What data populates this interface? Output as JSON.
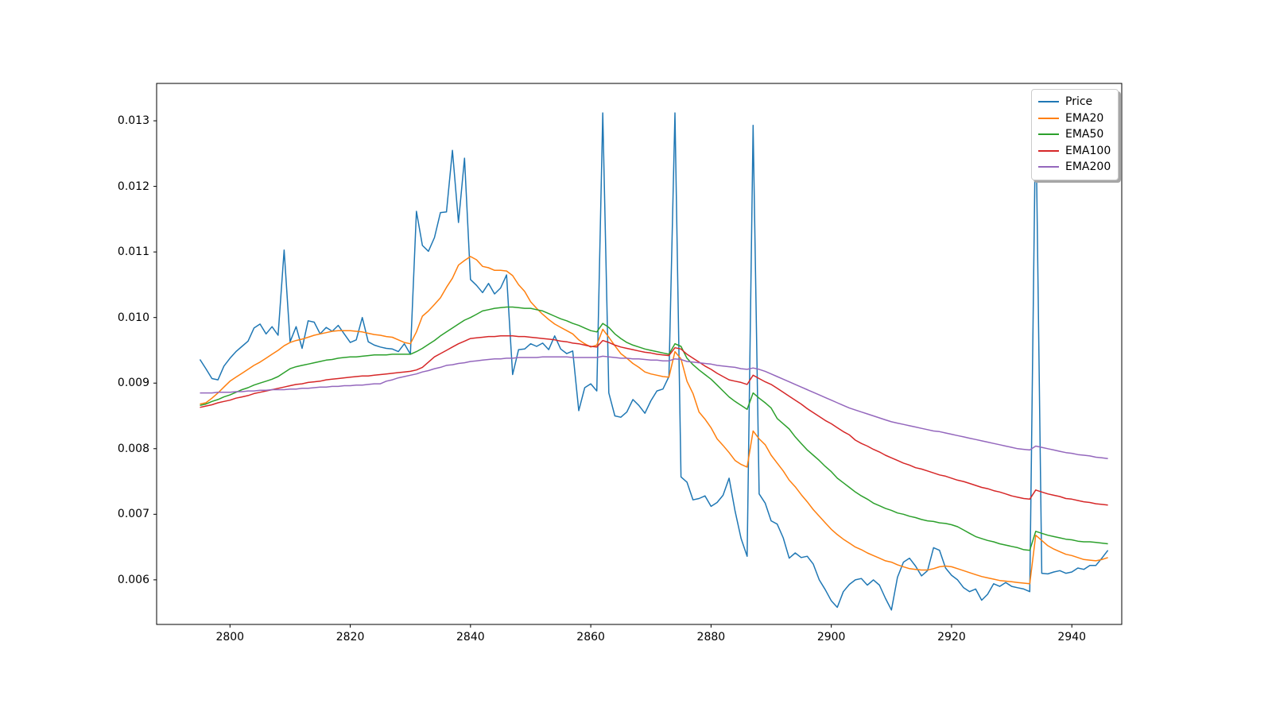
{
  "chart_data": {
    "type": "line",
    "title": "",
    "xlabel": "",
    "ylabel": "",
    "grid": false,
    "background": "#ffffff",
    "spine_color": "#000000",
    "xlim": [
      2787.8,
      2948.3
    ],
    "ylim": [
      0.00532,
      0.01357
    ],
    "x_ticks": [
      2800,
      2820,
      2840,
      2860,
      2880,
      2900,
      2920,
      2940
    ],
    "y_ticks": [
      0.006,
      0.007,
      0.008,
      0.009,
      0.01,
      0.011,
      0.012,
      0.013
    ],
    "x_start": 2795,
    "x_step": 1,
    "legend": {
      "position": "upper right",
      "entries": [
        "Price",
        "EMA20",
        "EMA50",
        "EMA100",
        "EMA200"
      ]
    },
    "series": [
      {
        "name": "Price",
        "color": "#1f77b4",
        "values": [
          0.00936,
          0.00922,
          0.00907,
          0.00905,
          0.00926,
          0.00938,
          0.00948,
          0.00956,
          0.00964,
          0.00984,
          0.0099,
          0.00975,
          0.00986,
          0.00973,
          0.01103,
          0.00963,
          0.00986,
          0.00953,
          0.00995,
          0.00993,
          0.00975,
          0.00985,
          0.00979,
          0.00988,
          0.00975,
          0.00962,
          0.00966,
          0.01,
          0.00963,
          0.00958,
          0.00955,
          0.00953,
          0.00952,
          0.00948,
          0.0096,
          0.00944,
          0.01162,
          0.0111,
          0.01101,
          0.01122,
          0.0116,
          0.01161,
          0.01255,
          0.01145,
          0.01243,
          0.01058,
          0.01049,
          0.01038,
          0.01052,
          0.01036,
          0.01045,
          0.01065,
          0.00913,
          0.00951,
          0.00952,
          0.0096,
          0.00956,
          0.00961,
          0.00951,
          0.00972,
          0.00952,
          0.00945,
          0.00949,
          0.00858,
          0.00893,
          0.00899,
          0.00888,
          0.01312,
          0.00885,
          0.0085,
          0.00848,
          0.00856,
          0.00875,
          0.00866,
          0.00854,
          0.00873,
          0.00888,
          0.00891,
          0.0091,
          0.01312,
          0.00757,
          0.00749,
          0.00722,
          0.00724,
          0.00728,
          0.00712,
          0.00718,
          0.00729,
          0.00755,
          0.00705,
          0.00663,
          0.00636,
          0.01293,
          0.00731,
          0.00717,
          0.0069,
          0.00685,
          0.00664,
          0.00633,
          0.00641,
          0.00634,
          0.00636,
          0.00624,
          0.006,
          0.00585,
          0.00568,
          0.00558,
          0.00582,
          0.00593,
          0.006,
          0.00602,
          0.00592,
          0.006,
          0.00592,
          0.00572,
          0.00554,
          0.00604,
          0.00627,
          0.00633,
          0.00621,
          0.00606,
          0.00614,
          0.00649,
          0.00645,
          0.00618,
          0.00607,
          0.006,
          0.00588,
          0.00582,
          0.00586,
          0.00569,
          0.00578,
          0.00594,
          0.0059,
          0.00596,
          0.0059,
          0.00588,
          0.00586,
          0.00582,
          0.01322,
          0.0061,
          0.00609,
          0.00612,
          0.00614,
          0.0061,
          0.00612,
          0.00618,
          0.00616,
          0.00622,
          0.00622,
          0.00633,
          0.00645
        ]
      },
      {
        "name": "EMA20",
        "color": "#ff7f0e",
        "values": [
          0.00868,
          0.0087,
          0.00877,
          0.00885,
          0.00894,
          0.00903,
          0.00909,
          0.00915,
          0.00921,
          0.00927,
          0.00932,
          0.00938,
          0.00944,
          0.0095,
          0.00957,
          0.00962,
          0.00965,
          0.00967,
          0.0097,
          0.00973,
          0.00975,
          0.00977,
          0.00979,
          0.0098,
          0.0098,
          0.0098,
          0.00979,
          0.00978,
          0.00976,
          0.00974,
          0.00973,
          0.00971,
          0.0097,
          0.00966,
          0.00962,
          0.0096,
          0.00978,
          0.01002,
          0.0101,
          0.0102,
          0.0103,
          0.01046,
          0.0106,
          0.0108,
          0.01087,
          0.01093,
          0.01088,
          0.01078,
          0.01076,
          0.01072,
          0.01072,
          0.01071,
          0.01064,
          0.0105,
          0.0104,
          0.01024,
          0.01014,
          0.01005,
          0.00997,
          0.0099,
          0.00985,
          0.0098,
          0.00975,
          0.00966,
          0.0096,
          0.00955,
          0.00958,
          0.00982,
          0.0097,
          0.00957,
          0.00945,
          0.00938,
          0.0093,
          0.00924,
          0.00917,
          0.00914,
          0.00912,
          0.0091,
          0.00909,
          0.00948,
          0.00937,
          0.00903,
          0.00884,
          0.00856,
          0.00845,
          0.00832,
          0.00815,
          0.00805,
          0.00794,
          0.00782,
          0.00776,
          0.00772,
          0.00827,
          0.00815,
          0.00806,
          0.0079,
          0.00778,
          0.00766,
          0.00752,
          0.00742,
          0.0073,
          0.00719,
          0.00707,
          0.00697,
          0.00687,
          0.00677,
          0.00669,
          0.00662,
          0.00656,
          0.0065,
          0.00646,
          0.00641,
          0.00637,
          0.00633,
          0.00629,
          0.00627,
          0.00623,
          0.0062,
          0.00617,
          0.00616,
          0.00615,
          0.00615,
          0.00617,
          0.0062,
          0.00621,
          0.0062,
          0.00617,
          0.00614,
          0.00611,
          0.00608,
          0.00605,
          0.00603,
          0.00601,
          0.00599,
          0.00598,
          0.00597,
          0.00596,
          0.00595,
          0.00594,
          0.00668,
          0.0066,
          0.00652,
          0.00647,
          0.00643,
          0.00639,
          0.00637,
          0.00634,
          0.00631,
          0.0063,
          0.00629,
          0.00631,
          0.00634
        ]
      },
      {
        "name": "EMA50",
        "color": "#2ca02c",
        "values": [
          0.00866,
          0.00868,
          0.00872,
          0.00875,
          0.00879,
          0.00882,
          0.00886,
          0.0089,
          0.00893,
          0.00897,
          0.009,
          0.00903,
          0.00906,
          0.0091,
          0.00916,
          0.00922,
          0.00925,
          0.00927,
          0.00929,
          0.00931,
          0.00933,
          0.00935,
          0.00936,
          0.00938,
          0.00939,
          0.0094,
          0.0094,
          0.00941,
          0.00942,
          0.00943,
          0.00943,
          0.00943,
          0.00944,
          0.00944,
          0.00944,
          0.00944,
          0.00948,
          0.00953,
          0.00959,
          0.00965,
          0.00972,
          0.00978,
          0.00984,
          0.0099,
          0.00996,
          0.01,
          0.01005,
          0.0101,
          0.01012,
          0.01014,
          0.01015,
          0.01016,
          0.01016,
          0.01015,
          0.01014,
          0.01014,
          0.01012,
          0.0101,
          0.01006,
          0.01002,
          0.00998,
          0.00995,
          0.00991,
          0.00988,
          0.00984,
          0.0098,
          0.00978,
          0.00991,
          0.00985,
          0.00975,
          0.00968,
          0.00962,
          0.00958,
          0.00955,
          0.00952,
          0.0095,
          0.00948,
          0.00946,
          0.00944,
          0.0096,
          0.00956,
          0.00938,
          0.00928,
          0.0092,
          0.00913,
          0.00906,
          0.00897,
          0.00888,
          0.00879,
          0.00872,
          0.00866,
          0.0086,
          0.00885,
          0.00877,
          0.0087,
          0.00862,
          0.00846,
          0.00838,
          0.0083,
          0.00818,
          0.00808,
          0.00798,
          0.0079,
          0.00782,
          0.00773,
          0.00765,
          0.00755,
          0.00748,
          0.00741,
          0.00734,
          0.00728,
          0.00723,
          0.00717,
          0.00713,
          0.00709,
          0.00706,
          0.00702,
          0.007,
          0.00697,
          0.00695,
          0.00692,
          0.0069,
          0.00689,
          0.00687,
          0.00686,
          0.00684,
          0.00681,
          0.00676,
          0.00671,
          0.00666,
          0.00663,
          0.0066,
          0.00658,
          0.00655,
          0.00653,
          0.00651,
          0.00649,
          0.00646,
          0.00645,
          0.00674,
          0.00671,
          0.00668,
          0.00666,
          0.00664,
          0.00662,
          0.00661,
          0.00659,
          0.00658,
          0.00658,
          0.00657,
          0.00656,
          0.00655
        ]
      },
      {
        "name": "EMA100",
        "color": "#d62728",
        "values": [
          0.00863,
          0.00865,
          0.00867,
          0.0087,
          0.00872,
          0.00874,
          0.00877,
          0.00879,
          0.00881,
          0.00884,
          0.00886,
          0.00888,
          0.0089,
          0.00892,
          0.00894,
          0.00896,
          0.00898,
          0.00899,
          0.00901,
          0.00902,
          0.00903,
          0.00905,
          0.00906,
          0.00907,
          0.00908,
          0.00909,
          0.0091,
          0.00911,
          0.00911,
          0.00912,
          0.00913,
          0.00914,
          0.00915,
          0.00916,
          0.00917,
          0.00918,
          0.0092,
          0.00924,
          0.00932,
          0.0094,
          0.00945,
          0.0095,
          0.00955,
          0.0096,
          0.00964,
          0.00968,
          0.00969,
          0.0097,
          0.00971,
          0.00971,
          0.00972,
          0.00972,
          0.00972,
          0.00971,
          0.00971,
          0.0097,
          0.00969,
          0.00968,
          0.00967,
          0.00966,
          0.00964,
          0.00963,
          0.00961,
          0.0096,
          0.00958,
          0.00956,
          0.00955,
          0.00965,
          0.00962,
          0.00958,
          0.00955,
          0.00953,
          0.00951,
          0.00949,
          0.00947,
          0.00946,
          0.00944,
          0.00943,
          0.00942,
          0.00954,
          0.00952,
          0.00944,
          0.00938,
          0.00932,
          0.00926,
          0.00921,
          0.00915,
          0.0091,
          0.00905,
          0.00903,
          0.00901,
          0.00898,
          0.00912,
          0.00907,
          0.00902,
          0.00898,
          0.00892,
          0.00886,
          0.0088,
          0.00874,
          0.00868,
          0.00861,
          0.00855,
          0.00849,
          0.00843,
          0.00838,
          0.00832,
          0.00826,
          0.00821,
          0.00813,
          0.00808,
          0.00804,
          0.00799,
          0.00795,
          0.0079,
          0.00786,
          0.00782,
          0.00778,
          0.00775,
          0.00771,
          0.00769,
          0.00766,
          0.00763,
          0.0076,
          0.00758,
          0.00755,
          0.00752,
          0.0075,
          0.00747,
          0.00744,
          0.00741,
          0.00739,
          0.00736,
          0.00734,
          0.00731,
          0.00728,
          0.00726,
          0.00724,
          0.00723,
          0.00737,
          0.00734,
          0.00731,
          0.00729,
          0.00727,
          0.00724,
          0.00723,
          0.00721,
          0.00719,
          0.00718,
          0.00716,
          0.00715,
          0.00714
        ]
      },
      {
        "name": "EMA200",
        "color": "#9467bd",
        "values": [
          0.00885,
          0.00885,
          0.00885,
          0.00886,
          0.00886,
          0.00886,
          0.00887,
          0.00887,
          0.00888,
          0.00888,
          0.00889,
          0.00889,
          0.0089,
          0.0089,
          0.0089,
          0.00891,
          0.00891,
          0.00892,
          0.00892,
          0.00893,
          0.00894,
          0.00894,
          0.00895,
          0.00895,
          0.00896,
          0.00896,
          0.00897,
          0.00897,
          0.00898,
          0.00899,
          0.00899,
          0.00903,
          0.00905,
          0.00908,
          0.0091,
          0.00912,
          0.00914,
          0.00917,
          0.00919,
          0.00922,
          0.00924,
          0.00927,
          0.00928,
          0.0093,
          0.00931,
          0.00933,
          0.00934,
          0.00935,
          0.00936,
          0.00937,
          0.00937,
          0.00938,
          0.00938,
          0.00939,
          0.00939,
          0.00939,
          0.00939,
          0.0094,
          0.0094,
          0.0094,
          0.0094,
          0.0094,
          0.00939,
          0.00939,
          0.00939,
          0.00939,
          0.00939,
          0.00941,
          0.0094,
          0.00939,
          0.00938,
          0.00938,
          0.00937,
          0.00937,
          0.00936,
          0.00935,
          0.00935,
          0.00934,
          0.00934,
          0.00937,
          0.00936,
          0.00933,
          0.00932,
          0.00931,
          0.0093,
          0.00929,
          0.00927,
          0.00926,
          0.00925,
          0.00924,
          0.00922,
          0.00921,
          0.00923,
          0.00921,
          0.00918,
          0.00914,
          0.0091,
          0.00906,
          0.00902,
          0.00898,
          0.00894,
          0.0089,
          0.00886,
          0.00882,
          0.00878,
          0.00874,
          0.0087,
          0.00866,
          0.00862,
          0.00859,
          0.00856,
          0.00853,
          0.0085,
          0.00847,
          0.00844,
          0.00841,
          0.00839,
          0.00837,
          0.00835,
          0.00833,
          0.00831,
          0.00829,
          0.00827,
          0.00826,
          0.00824,
          0.00822,
          0.0082,
          0.00818,
          0.00816,
          0.00814,
          0.00812,
          0.0081,
          0.00808,
          0.00806,
          0.00804,
          0.00802,
          0.008,
          0.00799,
          0.00798,
          0.00804,
          0.00802,
          0.008,
          0.00798,
          0.00796,
          0.00794,
          0.00793,
          0.00791,
          0.0079,
          0.00789,
          0.00787,
          0.00786,
          0.00785
        ]
      }
    ]
  }
}
